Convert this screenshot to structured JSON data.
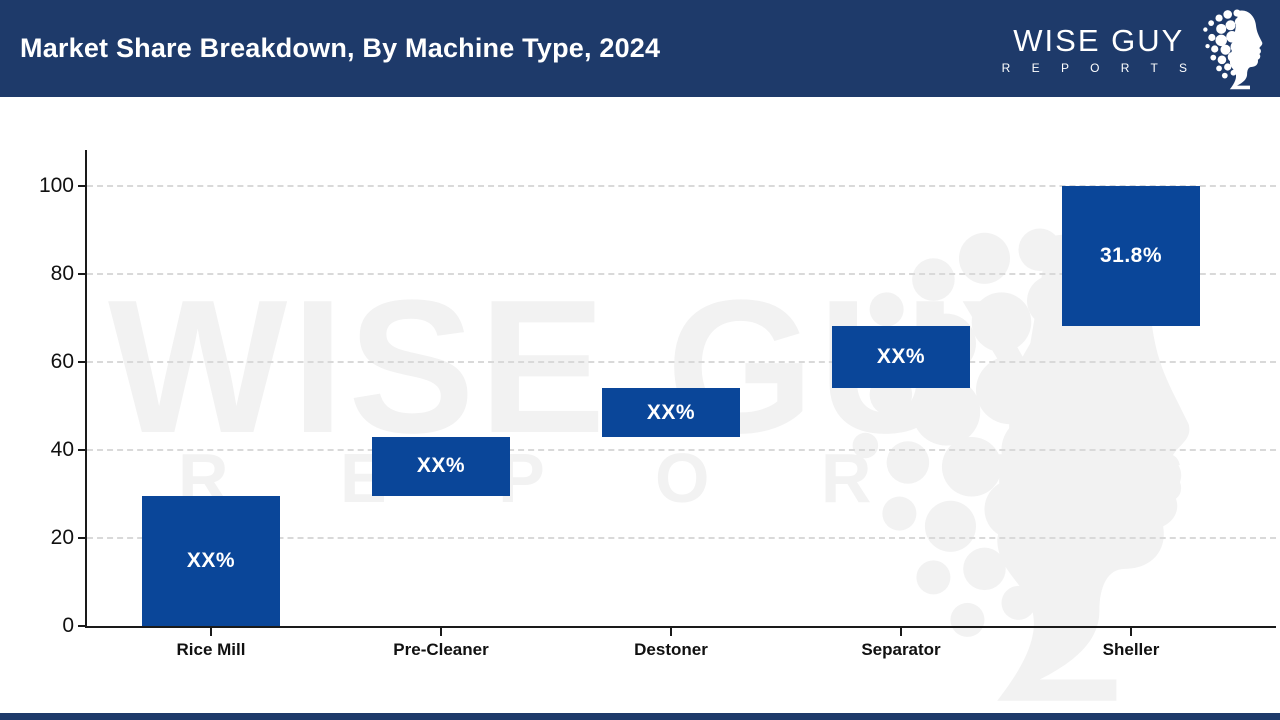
{
  "header": {
    "title": "Market Share Breakdown, By Machine Type, 2024",
    "logo": {
      "line1": "WISE GUY",
      "line2": "R E P O R T S"
    }
  },
  "watermark": {
    "line1": "WISE GUY",
    "line2": "R E P O R T S"
  },
  "colors": {
    "header_bg": "#1e3a6a",
    "bar_blue": "#0a4699",
    "gridline": "#d9d9d9",
    "axis": "#1a1a1a",
    "bar_label_text": "#ffffff",
    "watermark": "#f2f2f2"
  },
  "chart_data": {
    "type": "bar",
    "subtype": "waterfall",
    "title": "Market Share Breakdown, By Machine Type, 2024",
    "xlabel": "",
    "ylabel": "",
    "categories": [
      "Rice Mill",
      "Pre-Cleaner",
      "Destoner",
      "Separator",
      "Sheller"
    ],
    "segments": [
      {
        "category": "Rice Mill",
        "start": 0,
        "end": 29.5,
        "value_label": "XX%"
      },
      {
        "category": "Pre-Cleaner",
        "start": 29.5,
        "end": 43,
        "value_label": "XX%"
      },
      {
        "category": "Destoner",
        "start": 43,
        "end": 54,
        "value_label": "XX%"
      },
      {
        "category": "Separator",
        "start": 54,
        "end": 68.2,
        "value_label": "XX%"
      },
      {
        "category": "Sheller",
        "start": 68.2,
        "end": 100,
        "value_label": "31.8%"
      }
    ],
    "yticks": [
      0,
      20,
      40,
      60,
      80,
      100
    ],
    "ylim": [
      0,
      108
    ],
    "grid": "horizontal-dashed",
    "legend": "none"
  }
}
